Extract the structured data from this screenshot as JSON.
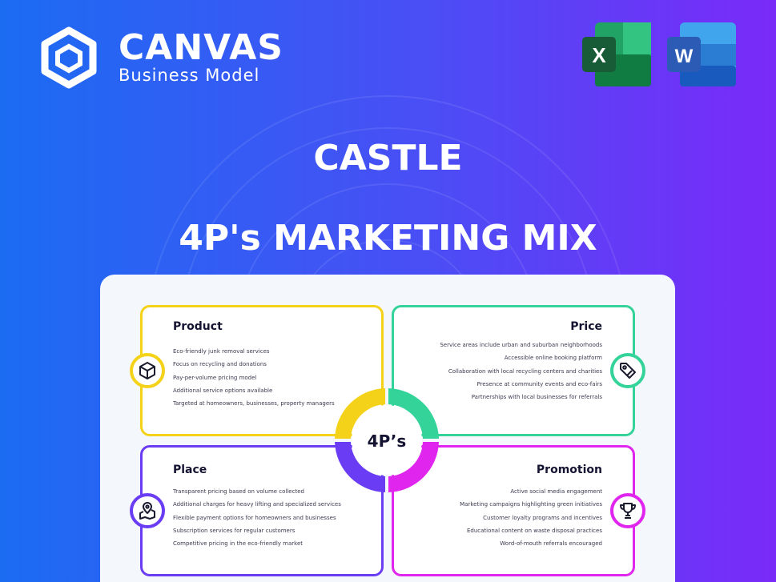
{
  "brand": {
    "title": "CANVAS",
    "subtitle": "Business Model"
  },
  "apps": [
    {
      "name": "excel",
      "letter": "X",
      "color": "#1d7044"
    },
    {
      "name": "word",
      "letter": "W",
      "color": "#2b5bb5"
    }
  ],
  "heading": {
    "company": "CASTLE",
    "title": "4P's MARKETING MIX"
  },
  "center_label": "4P’s",
  "colors": {
    "product": "#f5d21a",
    "price": "#34d399",
    "place": "#6a3df5",
    "promotion": "#e026ee"
  },
  "sections": {
    "product": {
      "title": "Product",
      "items": [
        "Eco-friendly junk removal services",
        "Focus on recycling and donations",
        "Pay-per-volume pricing model",
        "Additional service options available",
        "Targeted at homeowners, businesses, property managers"
      ]
    },
    "price": {
      "title": "Price",
      "items": [
        "Service areas include urban and suburban neighborhoods",
        "Accessible online booking platform",
        "Collaboration with local recycling centers and charities",
        "Presence at community events and eco-fairs",
        "Partnerships with local businesses for referrals"
      ]
    },
    "place": {
      "title": "Place",
      "items": [
        "Transparent pricing based on volume collected",
        "Additional charges for heavy lifting and specialized services",
        "Flexible payment options for homeowners and businesses",
        "Subscription services for regular customers",
        "Competitive pricing in the eco-friendly market"
      ]
    },
    "promotion": {
      "title": "Promotion",
      "items": [
        "Active social media engagement",
        "Marketing campaigns highlighting green initiatives",
        "Customer loyalty programs and incentives",
        "Educational content on waste disposal practices",
        "Word-of-mouth referrals encouraged"
      ]
    }
  }
}
